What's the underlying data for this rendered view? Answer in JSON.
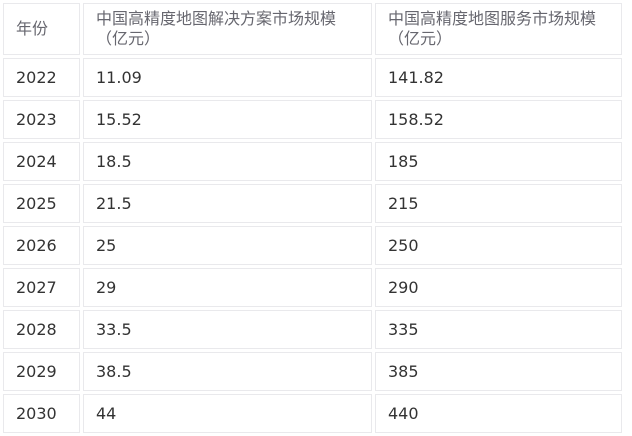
{
  "table": {
    "border_color": "#e9e9ec",
    "header_text_color": "#67676f",
    "body_text_color": "#333333",
    "background_color": "#ffffff",
    "columns": [
      {
        "label": "年份",
        "unit": ""
      },
      {
        "label": "中国高精度地图解决方案市场规模",
        "unit": "（亿元）"
      },
      {
        "label": "中国高精度地图服务市场规模",
        "unit": "（亿元）"
      }
    ],
    "rows": [
      {
        "year": "2022",
        "solution": "11.09",
        "service": "141.82"
      },
      {
        "year": "2023",
        "solution": "15.52",
        "service": "158.52"
      },
      {
        "year": "2024",
        "solution": "18.5",
        "service": "185"
      },
      {
        "year": "2025",
        "solution": "21.5",
        "service": "215"
      },
      {
        "year": "2026",
        "solution": "25",
        "service": "250"
      },
      {
        "year": "2027",
        "solution": "29",
        "service": "290"
      },
      {
        "year": "2028",
        "solution": "33.5",
        "service": "335"
      },
      {
        "year": "2029",
        "solution": "38.5",
        "service": "385"
      },
      {
        "year": "2030",
        "solution": "44",
        "service": "440"
      }
    ]
  },
  "chart_data": {
    "type": "table",
    "columns": [
      "年份",
      "中国高精度地图解决方案市场规模（亿元）",
      "中国高精度地图服务市场规模（亿元）"
    ],
    "rows": [
      [
        "2022",
        11.09,
        141.82
      ],
      [
        "2023",
        15.52,
        158.52
      ],
      [
        "2024",
        18.5,
        185
      ],
      [
        "2025",
        21.5,
        215
      ],
      [
        "2026",
        25,
        250
      ],
      [
        "2027",
        29,
        290
      ],
      [
        "2028",
        33.5,
        335
      ],
      [
        "2029",
        38.5,
        385
      ],
      [
        "2030",
        44,
        440
      ]
    ]
  }
}
